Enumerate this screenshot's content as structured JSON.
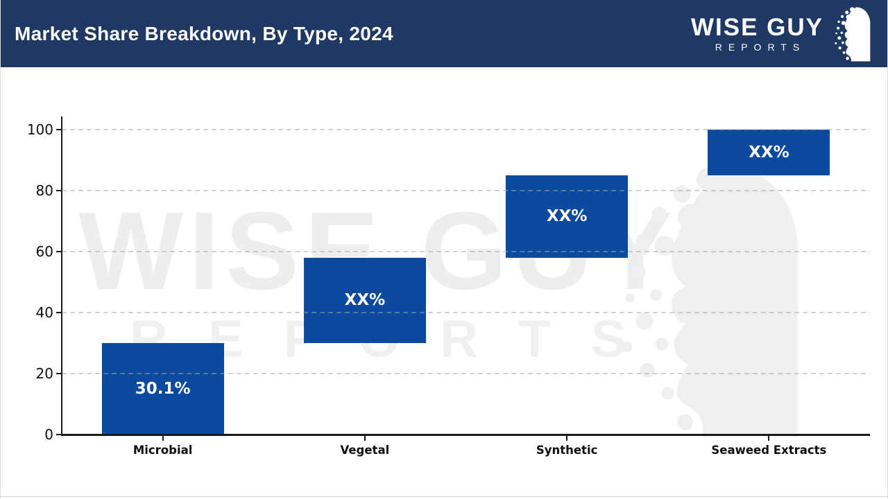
{
  "header": {
    "title": "Market Share Breakdown, By Type, 2024",
    "bg_color": "#1f3864"
  },
  "logo": {
    "line1": "WISE GUY",
    "line2": "REPORTS",
    "icon": "wiseguy-head-icon"
  },
  "watermark": {
    "line1": "WISE GUY",
    "line2": "REPORTS",
    "icon": "watermark-head-icon",
    "color": "#efefef"
  },
  "chart_data": {
    "type": "bar",
    "subtype": "floating-waterfall",
    "title": "Market Share Breakdown, By Type, 2024",
    "categories": [
      "Microbial",
      "Vegetal",
      "Synthetic",
      "Seaweed Extracts"
    ],
    "series": [
      {
        "name": "Market Share %",
        "ranges": [
          [
            0,
            30.1
          ],
          [
            30.1,
            58
          ],
          [
            58,
            85
          ],
          [
            85,
            100
          ]
        ]
      }
    ],
    "bar_labels": [
      "30.1%",
      "XX%",
      "XX%",
      "XX%"
    ],
    "yticks": [
      0,
      20,
      40,
      60,
      80,
      100
    ],
    "ylim": [
      0,
      105
    ],
    "xlabel": "",
    "ylabel": "",
    "grid": "horizontal-dashed",
    "legend": "none",
    "bar_color": "#0b4a9f",
    "bar_label_color": "#ffffff"
  }
}
